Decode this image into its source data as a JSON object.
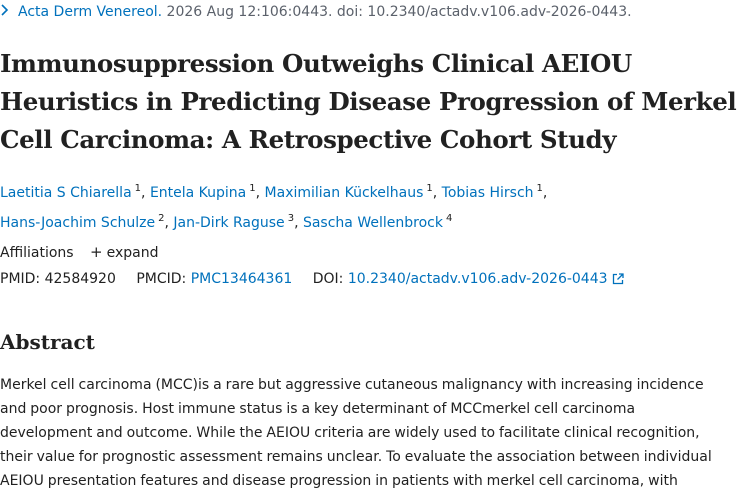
{
  "citation": {
    "journal": "Acta Derm Venereol.",
    "rest": " 2026 Aug 12:106:0443. doi: 10.2340/actadv.v106.adv-2026-0443."
  },
  "title": "Immunosuppression Outweighs Clinical AEIOU Heuristics in Predicting Disease Progression of Merkel Cell Carcinoma: A Retrospective Cohort Study",
  "authors": [
    {
      "name": "Laetitia S Chiarella",
      "aff": "1"
    },
    {
      "name": "Entela Kupina",
      "aff": "1"
    },
    {
      "name": "Maximilian Kückelhaus",
      "aff": "1"
    },
    {
      "name": "Tobias Hirsch",
      "aff": "1"
    },
    {
      "name": "Hans-Joachim Schulze",
      "aff": "2"
    },
    {
      "name": "Jan-Dirk Raguse",
      "aff": "3"
    },
    {
      "name": "Sascha Wellenbrock",
      "aff": "4"
    }
  ],
  "affiliations": {
    "label": "Affiliations",
    "expand_label": "expand"
  },
  "ids": {
    "pmid_label": "PMID:",
    "pmid": "42584920",
    "pmcid_label": "PMCID:",
    "pmcid": "PMC13464361",
    "doi_label": "DOI:",
    "doi": "10.2340/actadv.v106.adv-2026-0443"
  },
  "abstract": {
    "heading": "Abstract",
    "lines": [
      "Merkel cell carcinoma (MCC)is a rare but aggressive cutaneous malignancy with increasing incidence",
      "and poor prognosis. Host immune status is a key determinant of MCCmerkel cell carcinoma",
      "development and outcome. While the AEIOU criteria are widely used to facilitate clinical recognition,",
      "their value for prognostic assessment remains unclear. To evaluate the association between individual",
      "AEIOU presentation features and disease progression in patients with merkel cell carcinoma, with"
    ]
  },
  "icons": {
    "chevron": "chevron-right-icon",
    "plus": "plus-icon",
    "external": "external-link-icon"
  },
  "colors": {
    "link": "#0071bc",
    "text": "#212121",
    "muted": "#5b616b"
  }
}
